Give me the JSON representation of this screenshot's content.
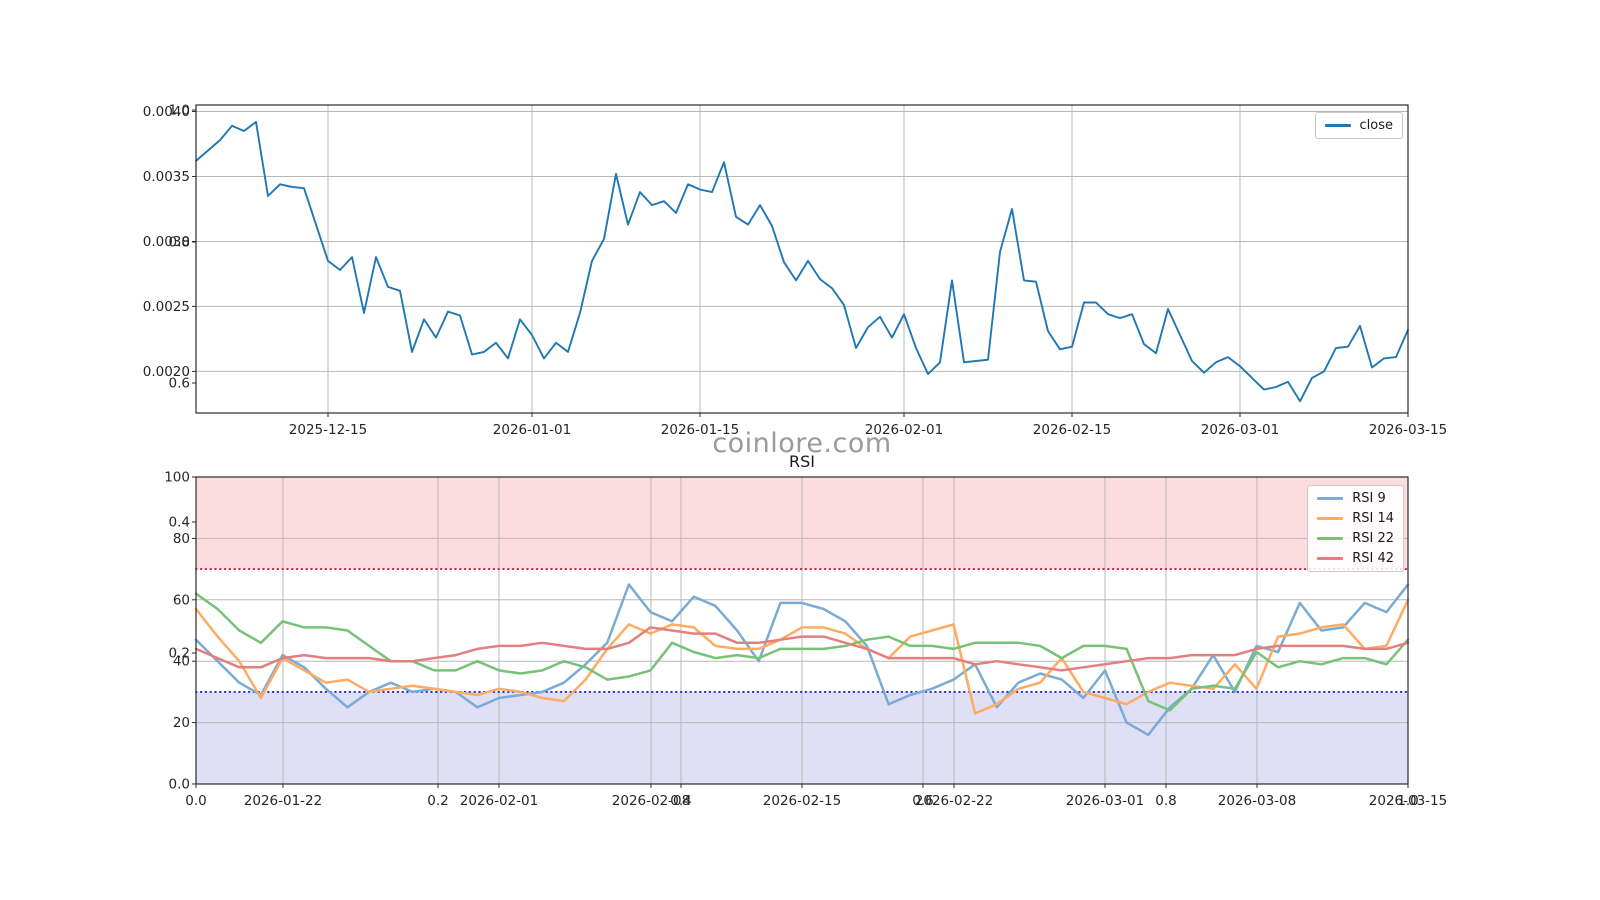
{
  "watermark": "coinlore.com",
  "colors": {
    "close": "#1f77b4",
    "rsi9": "#7aabd4",
    "rsi14": "#ffab62",
    "rsi22": "#77c277",
    "rsi42": "#e37f7d",
    "grid": "#b8b8b8",
    "spine": "#2b2b2b",
    "overbought_band": "#fbdde0",
    "oversold_band": "#dfdff6",
    "overbought_line": "#cf1432",
    "oversold_line": "#1d1dcf",
    "watermark_gray": "#9a9a9a"
  },
  "chart_data": [
    {
      "type": "line",
      "title": "",
      "legend_position": "upper right",
      "grid": true,
      "x_range": [
        "2025-12-04",
        "2026-03-15"
      ],
      "x_tick_labels": [
        "2025-12-15",
        "2026-01-01",
        "2026-01-15",
        "2026-02-01",
        "2026-02-15",
        "2026-03-01",
        "2026-03-15"
      ],
      "y_tick_labels": [
        "0.0040",
        "0.0035",
        "0.0030",
        "0.0025",
        "0.0020"
      ],
      "y_tick_values": [
        0.004,
        0.0035,
        0.003,
        0.0025,
        0.002
      ],
      "y_twin_tick_labels": [
        "1.0",
        "0.8",
        "0.6"
      ],
      "ylim": [
        0.00168,
        0.00405
      ],
      "series": [
        {
          "name": "close",
          "color": "#1f77b4",
          "values": [
            0.00362,
            0.0037,
            0.00378,
            0.00389,
            0.00385,
            0.00392,
            0.00335,
            0.00344,
            0.00342,
            0.00341,
            0.00313,
            0.00285,
            0.00278,
            0.00288,
            0.00245,
            0.00288,
            0.00265,
            0.00262,
            0.00215,
            0.0024,
            0.00226,
            0.00246,
            0.00243,
            0.00213,
            0.00215,
            0.00222,
            0.0021,
            0.0024,
            0.00228,
            0.0021,
            0.00222,
            0.00215,
            0.00245,
            0.00285,
            0.00302,
            0.00352,
            0.00313,
            0.00338,
            0.00328,
            0.00331,
            0.00322,
            0.00344,
            0.0034,
            0.00338,
            0.00361,
            0.00319,
            0.00313,
            0.00328,
            0.00312,
            0.00284,
            0.0027,
            0.00285,
            0.00271,
            0.00264,
            0.00251,
            0.00218,
            0.00234,
            0.00242,
            0.00226,
            0.00244,
            0.00218,
            0.00198,
            0.00207,
            0.0027,
            0.00207,
            0.00208,
            0.00209,
            0.00292,
            0.00325,
            0.0027,
            0.00269,
            0.00231,
            0.00217,
            0.00219,
            0.00253,
            0.00253,
            0.00244,
            0.00241,
            0.00244,
            0.00221,
            0.00214,
            0.00248,
            0.00228,
            0.00208,
            0.00199,
            0.00207,
            0.00211,
            0.00204,
            0.00195,
            0.00186,
            0.00188,
            0.00192,
            0.00177,
            0.00195,
            0.002,
            0.00218,
            0.00219,
            0.00235,
            0.00203,
            0.0021,
            0.00211,
            0.00232
          ]
        }
      ]
    },
    {
      "type": "line",
      "title": "RSI",
      "legend_position": "upper right",
      "grid": true,
      "x_range": [
        "2026-01-18",
        "2026-03-15"
      ],
      "x_tick_labels": [
        "2026-01-22",
        "2026-02-01",
        "2026-02-08",
        "2026-02-15",
        "2026-02-22",
        "2026-03-01",
        "2026-03-08",
        "2026-03-15"
      ],
      "x_twin_tick_labels": [
        "0.0",
        "0.2",
        "0.4",
        "0.6",
        "0.8",
        "1.0"
      ],
      "y_tick_labels": [
        "100",
        "80",
        "60",
        "40",
        "20"
      ],
      "y_tick_values": [
        100,
        80,
        60,
        40,
        20
      ],
      "y_twin_tick_labels": [
        "0.4",
        "0.2",
        "0.0"
      ],
      "ylim": [
        0,
        100
      ],
      "overbought_level": 70,
      "oversold_level": 30,
      "bands": [
        {
          "from": 70,
          "to": 100,
          "color": "#fbdde0"
        },
        {
          "from": 0,
          "to": 30,
          "color": "#dfdff6"
        }
      ],
      "ref_lines": [
        {
          "value": 70,
          "color": "#cf1432",
          "style": "dotted"
        },
        {
          "value": 30,
          "color": "#1d1dcf",
          "style": "dotted"
        }
      ],
      "series": [
        {
          "name": "RSI 9",
          "color": "#7aabd4",
          "values": [
            47,
            40,
            33,
            29,
            42,
            38,
            31,
            25,
            30,
            33,
            30,
            31,
            30,
            25,
            28,
            29,
            30,
            33,
            39,
            46,
            65,
            56,
            53,
            61,
            58,
            50,
            40,
            59,
            59,
            57,
            53,
            45,
            26,
            29,
            31,
            34,
            39,
            25,
            33,
            36,
            34,
            28,
            37,
            20,
            16,
            25,
            31,
            42,
            30,
            45,
            43,
            59,
            50,
            51,
            59,
            56,
            65
          ]
        },
        {
          "name": "RSI 14",
          "color": "#ffab62",
          "values": [
            57,
            48,
            40,
            28,
            41,
            37,
            33,
            34,
            30,
            31,
            32,
            31,
            30,
            29,
            31,
            30,
            28,
            27,
            34,
            44,
            52,
            49,
            52,
            51,
            45,
            44,
            44,
            47,
            51,
            51,
            49,
            44,
            41,
            48,
            50,
            52,
            23,
            26,
            31,
            33,
            41,
            30,
            28,
            26,
            30,
            33,
            32,
            31,
            39,
            31,
            48,
            49,
            51,
            52,
            44,
            45,
            60
          ]
        },
        {
          "name": "RSI 22",
          "color": "#77c277",
          "values": [
            62,
            57,
            50,
            46,
            53,
            51,
            51,
            50,
            45,
            40,
            40,
            37,
            37,
            40,
            37,
            36,
            37,
            40,
            38,
            34,
            35,
            37,
            46,
            43,
            41,
            42,
            41,
            44,
            44,
            44,
            45,
            47,
            48,
            45,
            45,
            44,
            46,
            46,
            46,
            45,
            41,
            45,
            45,
            44,
            27,
            24,
            31,
            32,
            31,
            43,
            38,
            40,
            39,
            41,
            41,
            39,
            47
          ]
        },
        {
          "name": "RSI 42",
          "color": "#e37f7d",
          "values": [
            44,
            41,
            38,
            38,
            41,
            42,
            41,
            41,
            41,
            40,
            40,
            41,
            42,
            44,
            45,
            45,
            46,
            45,
            44,
            44,
            46,
            51,
            50,
            49,
            49,
            46,
            46,
            47,
            48,
            48,
            46,
            44,
            41,
            41,
            41,
            41,
            39,
            40,
            39,
            38,
            37,
            38,
            39,
            40,
            41,
            41,
            42,
            42,
            42,
            44,
            45,
            45,
            45,
            45,
            44,
            44,
            46
          ]
        }
      ]
    }
  ]
}
